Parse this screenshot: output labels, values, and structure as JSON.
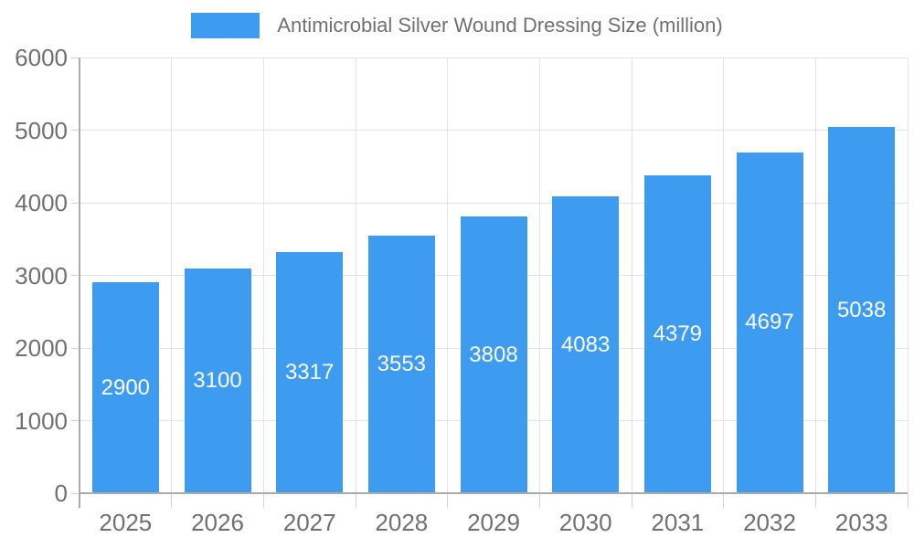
{
  "legend": {
    "label": "Antimicrobial Silver Wound Dressing Size (million)"
  },
  "chart_data": {
    "type": "bar",
    "title": "Antimicrobial Silver Wound Dressing Size (million)",
    "categories": [
      "2025",
      "2026",
      "2027",
      "2028",
      "2029",
      "2030",
      "2031",
      "2032",
      "2033"
    ],
    "values": [
      2900,
      3100,
      3317,
      3553,
      3808,
      4083,
      4379,
      4697,
      5038
    ],
    "xlabel": "",
    "ylabel": "",
    "ylim": [
      0,
      6000
    ],
    "yticks": [
      0,
      1000,
      2000,
      3000,
      4000,
      5000,
      6000
    ],
    "grid": true,
    "legend_position": "top-center",
    "bar_labels_inside": true
  },
  "colors": {
    "bar": "#3E9CF0",
    "bar_label_text": "#ffffff",
    "axis_text": "#707070",
    "grid_line": "#e3e3e3",
    "tick_line": "#d2d2d2",
    "axis_line": "#ababab",
    "background": "#ffffff"
  }
}
